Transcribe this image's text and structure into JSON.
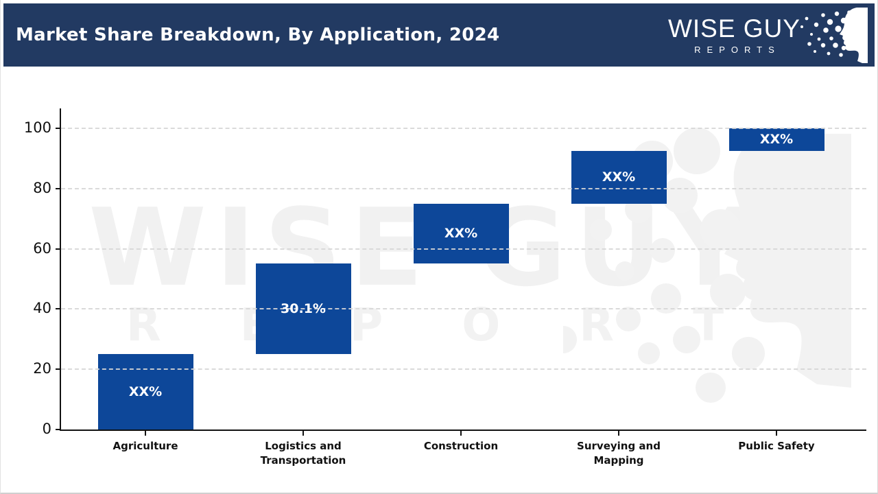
{
  "header": {
    "title": "Market Share Breakdown, By Application, 2024",
    "logo": {
      "line1": "WISE GUY",
      "line2": "REPORTS"
    }
  },
  "watermark": {
    "line1": "WISE GUY",
    "line2": "R E P O R T S"
  },
  "colors": {
    "header_bg": "#223A62",
    "bar": "#0D4799",
    "bar_label": "#FFFFFF",
    "gridline": "#D7D7D7",
    "axis": "#111111",
    "watermark": "#F1F1F1"
  },
  "chart_data": {
    "type": "bar",
    "subtype": "waterfall",
    "title": "Market Share Breakdown, By Application, 2024",
    "categories": [
      "Agriculture",
      "Logistics and Transportation",
      "Construction",
      "Surveying and Mapping",
      "Public Safety"
    ],
    "segments": [
      {
        "category": "Agriculture",
        "category_lines": [
          "Agriculture"
        ],
        "start": 0,
        "end": 25,
        "value": 25,
        "label": "XX%"
      },
      {
        "category": "Logistics and Transportation",
        "category_lines": [
          "Logistics and",
          "Transportation"
        ],
        "start": 25,
        "end": 55.1,
        "value": 30.1,
        "label": "30.1%"
      },
      {
        "category": "Construction",
        "category_lines": [
          "Construction"
        ],
        "start": 55.1,
        "end": 75,
        "value": 19.9,
        "label": "XX%"
      },
      {
        "category": "Surveying and Mapping",
        "category_lines": [
          "Surveying and",
          "Mapping"
        ],
        "start": 75,
        "end": 92.5,
        "value": 17.5,
        "label": "XX%"
      },
      {
        "category": "Public Safety",
        "category_lines": [
          "Public Safety"
        ],
        "start": 92.5,
        "end": 100,
        "value": 7.5,
        "label": "XX%"
      }
    ],
    "yticks": [
      0,
      20,
      40,
      60,
      80,
      100
    ],
    "ylim": [
      0,
      107
    ],
    "xlabel": "",
    "ylabel": "",
    "grid": "horizontal-dashed",
    "legend": "none"
  }
}
